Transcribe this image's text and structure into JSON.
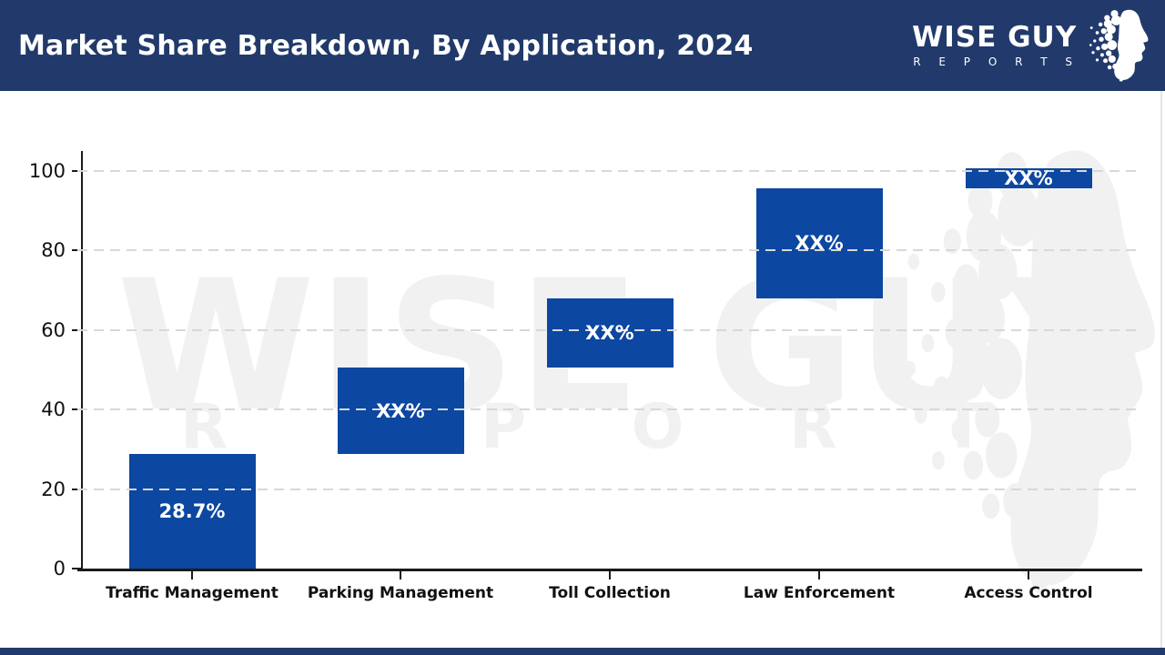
{
  "header": {
    "title": "Market Share Breakdown, By Application, 2024",
    "logo": {
      "line1": "WISE GUY",
      "line2": "R E P O R T S"
    }
  },
  "watermark": {
    "line1": "WISE GUY",
    "line2": "R E P O R T S"
  },
  "chart_data": {
    "type": "bar",
    "subtype": "waterfall",
    "title": "Market Share Breakdown, By Application, 2024",
    "categories": [
      "Traffic Management",
      "Parking Management",
      "Toll Collection",
      "Law Enforcement",
      "Access Control"
    ],
    "segments": [
      {
        "category": "Traffic Management",
        "start": 0,
        "end": 28.7,
        "label": "28.7%"
      },
      {
        "category": "Parking Management",
        "start": 28.7,
        "end": 50.5,
        "label": "XX%"
      },
      {
        "category": "Toll Collection",
        "start": 50.5,
        "end": 68.0,
        "label": "XX%"
      },
      {
        "category": "Law Enforcement",
        "start": 68.0,
        "end": 95.5,
        "label": "XX%"
      },
      {
        "category": "Access Control",
        "start": 95.5,
        "end": 100.5,
        "label": "XX%"
      }
    ],
    "yticks": [
      0,
      20,
      40,
      60,
      80,
      100
    ],
    "ylim": [
      0,
      105
    ],
    "xlabel": "",
    "ylabel": "",
    "grid": "horizontal-dashed",
    "legend": "none"
  },
  "colors": {
    "header_bg": "#213a6b",
    "footer_bg": "#213a6b",
    "bar": "#0c47a1",
    "bar_label": "#ffffff",
    "axis": "#1a1a1a",
    "gridline": "#d8d8d8",
    "watermark": "#f1f1f2",
    "title_text": "#ffffff"
  }
}
